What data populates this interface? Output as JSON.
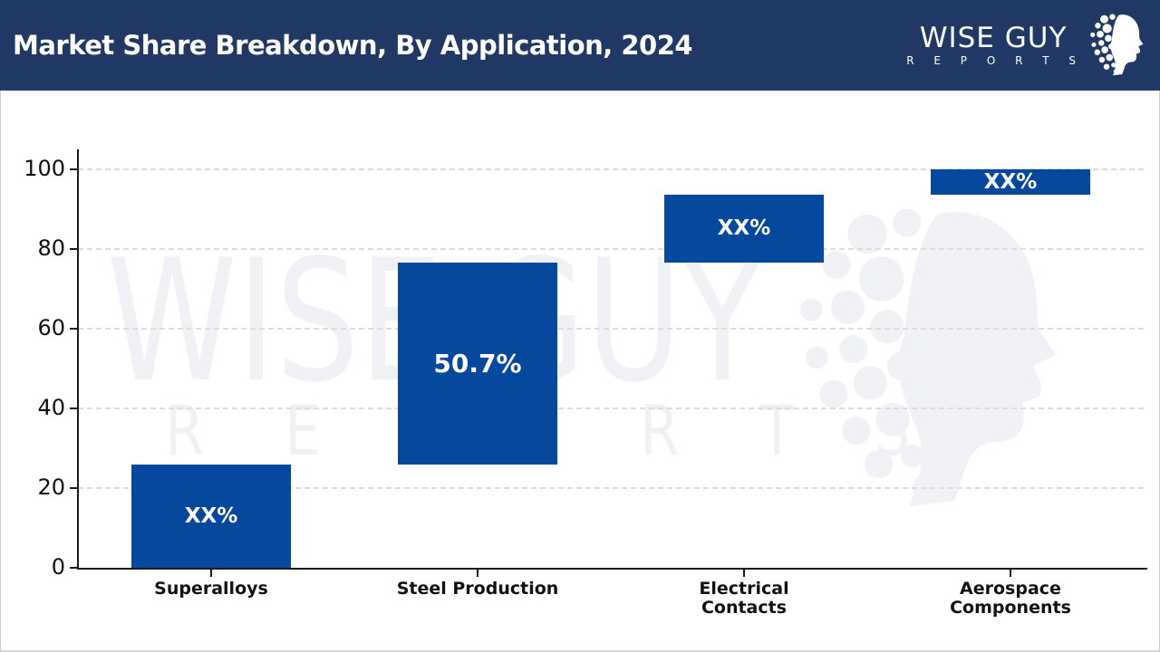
{
  "header": {
    "title": "Market Share Breakdown, By Application, 2024",
    "bg_color": "#203864",
    "logo": {
      "line1": "WISE GUY",
      "line2": "R E P O R T S",
      "face_icon": "dotted-face-profile"
    }
  },
  "watermark": {
    "line1": "WISE GUY",
    "line2": "R E P O R T S",
    "face_icon": "dotted-face-profile",
    "color": "#f0f1f4"
  },
  "chart_data": {
    "type": "bar",
    "subtype": "floating-waterfall",
    "title": "Market Share Breakdown, By Application, 2024",
    "categories": [
      [
        "Superalloys"
      ],
      [
        "Steel Production"
      ],
      [
        "Electrical",
        "Contacts"
      ],
      [
        "Aerospace",
        "Components"
      ]
    ],
    "bars": [
      {
        "category": "Superalloys",
        "start": 0,
        "end": 26,
        "label": "XX%"
      },
      {
        "category": "Steel Production",
        "start": 26,
        "end": 76.7,
        "label": "50.7%"
      },
      {
        "category": "Electrical Contacts",
        "start": 76.7,
        "end": 93.6,
        "label": "XX%"
      },
      {
        "category": "Aerospace Components",
        "start": 93.6,
        "end": 100,
        "label": "XX%"
      }
    ],
    "yticks": [
      0,
      20,
      40,
      60,
      80,
      100
    ],
    "ylim": [
      0,
      105
    ],
    "xlabel": "",
    "ylabel": "",
    "legend_position": "none",
    "grid": {
      "horizontal": true,
      "style": "dashed",
      "color": "#dcdcdc"
    },
    "bar_color": "#06489e",
    "value_label_color": "#ffffff",
    "axis_color": "#1a1a1a"
  }
}
